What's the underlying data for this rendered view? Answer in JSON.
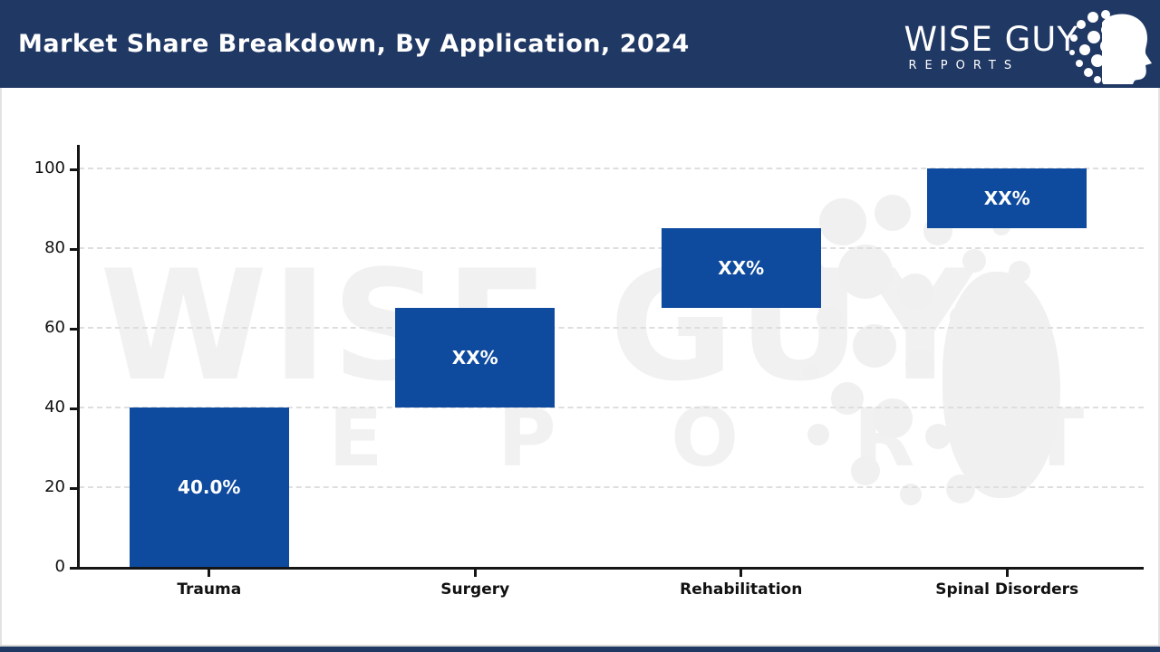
{
  "header": {
    "title": "Market Share Breakdown, By Application, 2024",
    "bg_color": "#203864",
    "logo": {
      "line1": "WISE GUY",
      "line2": "REPORTS"
    }
  },
  "watermark": {
    "line1": "WISE GUY",
    "line2": "R E P O R T S"
  },
  "footer": {
    "bg_color": "#203864"
  },
  "chart_data": {
    "type": "bar",
    "subtype": "waterfall",
    "title": "Market Share Breakdown, By Application, 2024",
    "categories": [
      "Trauma",
      "Surgery",
      "Rehabilitation",
      "Spinal Disorders"
    ],
    "segments": [
      {
        "category": "Trauma",
        "start": 0,
        "end": 40,
        "value": 40,
        "label": "40.0%"
      },
      {
        "category": "Surgery",
        "start": 40,
        "end": 65,
        "value": 25,
        "label": "XX%"
      },
      {
        "category": "Rehabilitation",
        "start": 65,
        "end": 85,
        "value": 20,
        "label": "XX%"
      },
      {
        "category": "Spinal Disorders",
        "start": 85,
        "end": 100,
        "value": 15,
        "label": "XX%"
      }
    ],
    "xlabel": "",
    "ylabel": "",
    "ylim": [
      0,
      100
    ],
    "yticks": [
      0,
      20,
      40,
      60,
      80,
      100
    ],
    "grid": "horizontal-dashed",
    "legend": "none",
    "bar_color": "#0e4a9e",
    "bar_label_color": "#ffffff",
    "axis_color": "#151515",
    "gridline_color": "#dedede"
  }
}
